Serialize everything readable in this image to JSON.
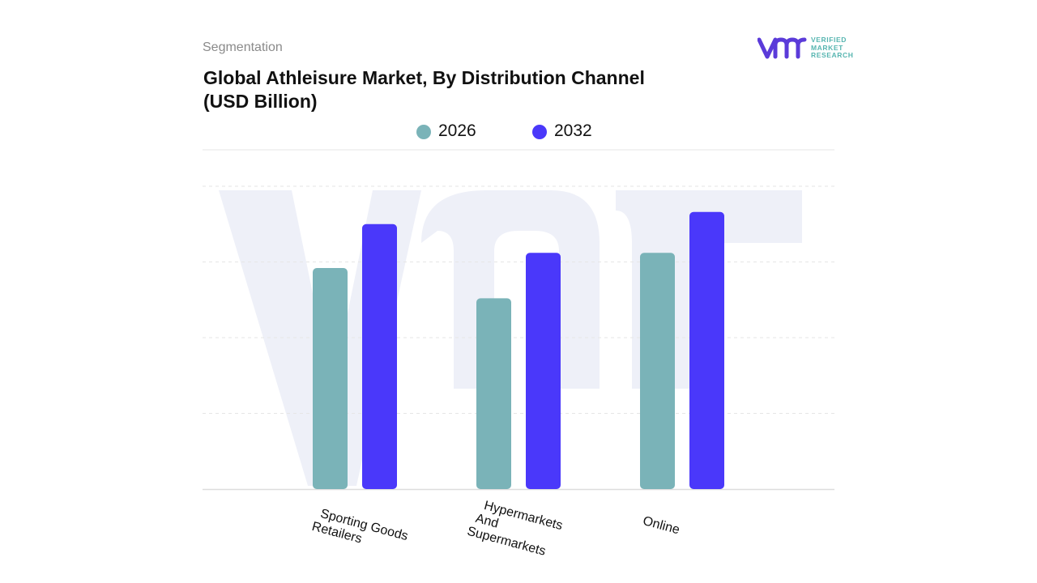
{
  "header": {
    "section_label": "Segmentation",
    "title_line1": "Global Athleisure Market, By Distribution Channel",
    "title_line2": "(USD Billion)"
  },
  "logo": {
    "brand_lines": [
      "VERIFIED",
      "MARKET",
      "RESEARCH"
    ],
    "color": "#5b3bd9"
  },
  "colors": {
    "series_2026": "#7ab3b8",
    "series_2032": "#4a38fa",
    "grid": "#e6e6e6"
  },
  "chart_data": {
    "type": "bar",
    "title": "Global Athleisure Market, By Distribution Channel (USD Billion)",
    "categories": [
      "Sporting Goods Retailers",
      "Hypermarkets And Supermarkets",
      "Online"
    ],
    "category_label_lines": [
      [
        "Sporting Goods",
        "Retailers"
      ],
      [
        "Hypermarkets",
        "And",
        "Supermarkets"
      ],
      [
        "Online"
      ]
    ],
    "series": [
      {
        "name": "2026",
        "values": [
          73,
          63,
          78
        ]
      },
      {
        "name": "2032",
        "values": [
          87.5,
          78,
          91.5
        ]
      }
    ],
    "ylim": [
      0,
      100
    ],
    "grid": true,
    "legend_position": "top-center",
    "xlabel": "",
    "ylabel": ""
  }
}
